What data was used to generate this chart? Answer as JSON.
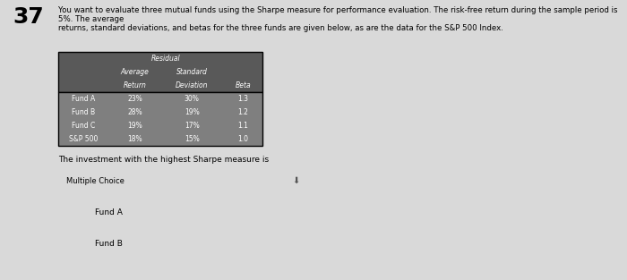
{
  "question_number": "37",
  "question_text": "You want to evaluate three mutual funds using the Sharpe measure for performance evaluation. The risk-free return during the sample period is 5%. The average\nreturns, standard deviations, and betas for the three funds are given below, as are the data for the S&P 500 Index.",
  "table_header_row1": [
    "",
    "Residual",
    "",
    ""
  ],
  "table_header_row2": [
    "",
    "Average",
    "Standard",
    ""
  ],
  "table_header_row3": [
    "",
    "Return",
    "Deviation",
    "Beta"
  ],
  "table_rows": [
    [
      "Fund A",
      "23%",
      "30%",
      "1.3"
    ],
    [
      "Fund B",
      "28%",
      "19%",
      "1.2"
    ],
    [
      "Fund C",
      "19%",
      "17%",
      "1.1"
    ],
    [
      "S&P 500",
      "18%",
      "15%",
      "1.0"
    ]
  ],
  "subtext": "The investment with the highest Sharpe measure is",
  "multiple_choice_label": "Multiple Choice",
  "choices": [
    "Fund A",
    "Fund B"
  ],
  "bg_color": "#d9d9d9",
  "table_header_bg": "#595959",
  "table_row_bg": "#7f7f7f",
  "table_text_color": "#ffffff",
  "body_bg": "#e8e8e8",
  "choice_box_bg": "#c8c8c8",
  "mc_box_bg": "#b0b0b0"
}
